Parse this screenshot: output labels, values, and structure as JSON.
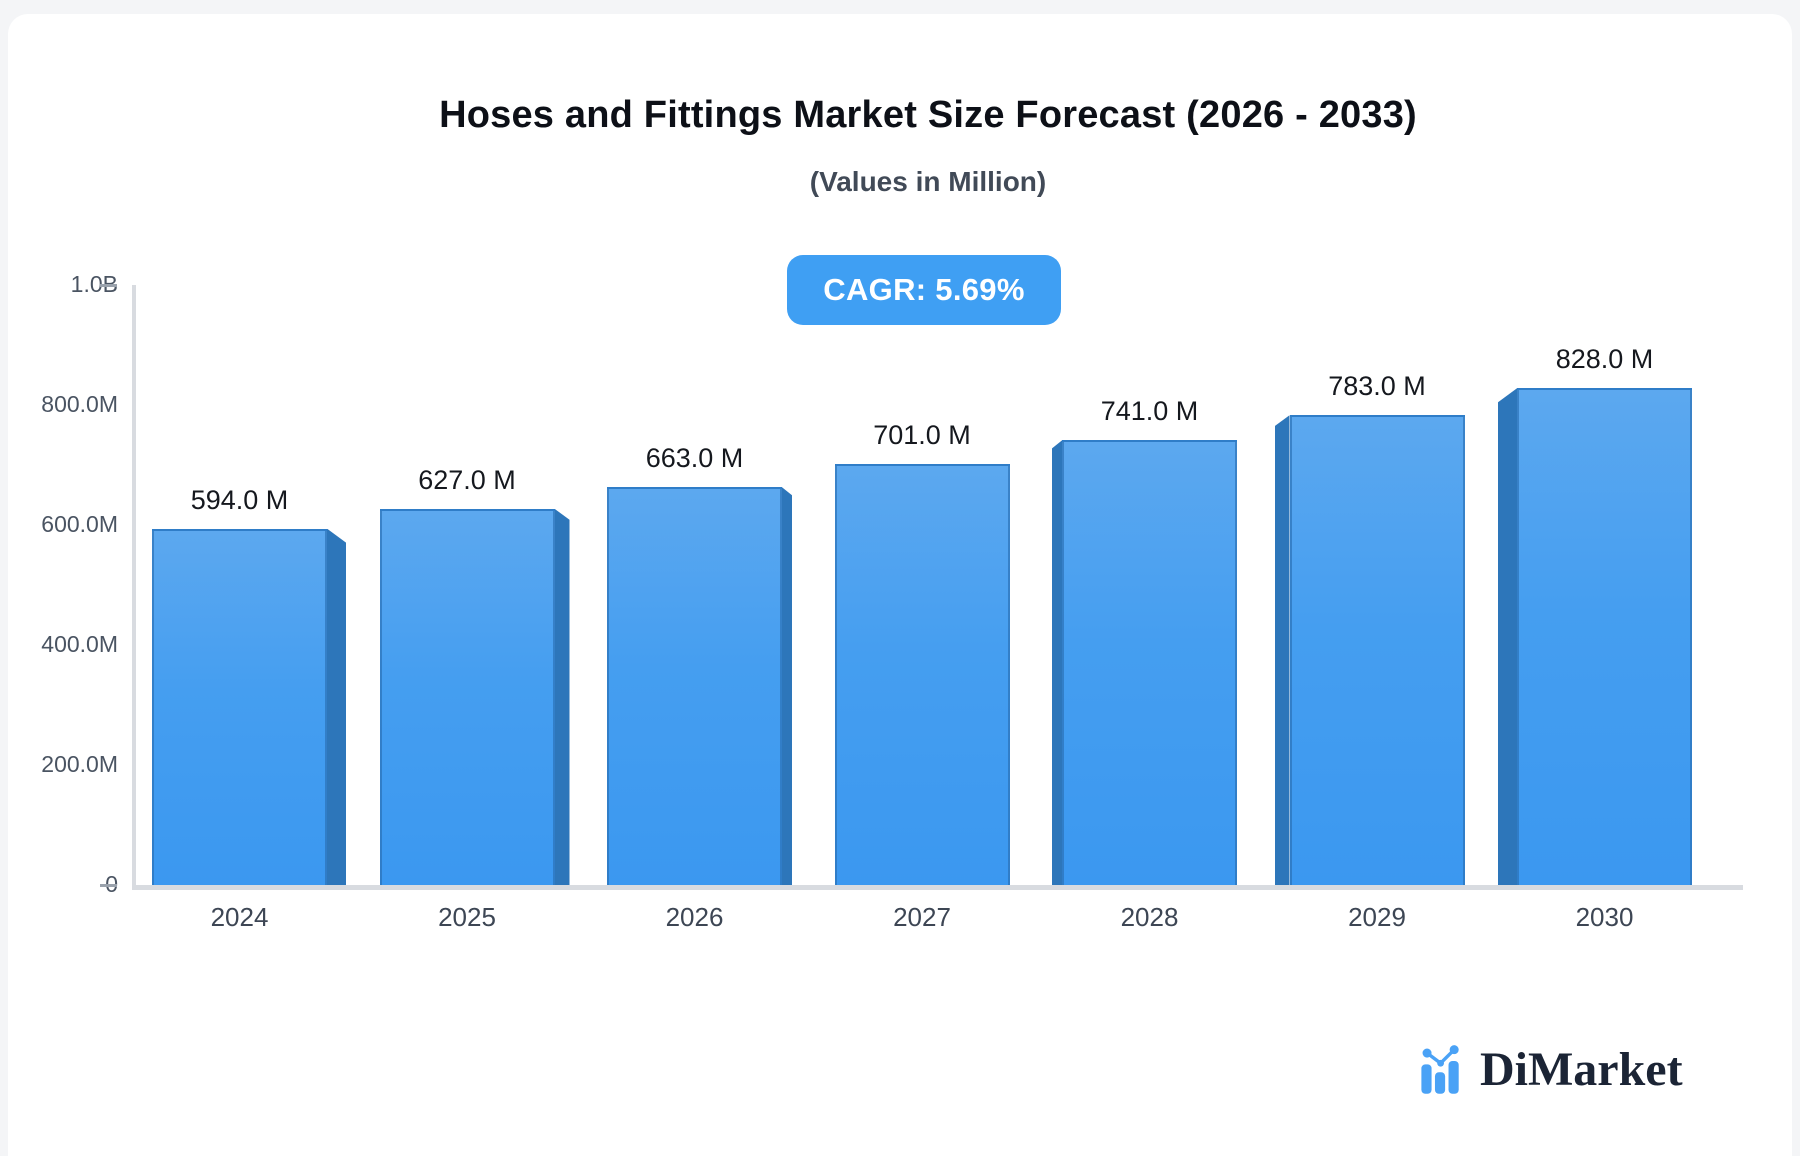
{
  "chart_data": {
    "type": "bar",
    "title": "Hoses and Fittings Market Size Forecast (2026 - 2033)",
    "subtitle": "(Values in Million)",
    "cagr_label": "CAGR: 5.69%",
    "categories": [
      "2024",
      "2025",
      "2026",
      "2027",
      "2028",
      "2029",
      "2030"
    ],
    "values": [
      594,
      627,
      663,
      701,
      741,
      783,
      828
    ],
    "value_labels": [
      "594.0 M",
      "627.0 M",
      "663.0 M",
      "701.0 M",
      "741.0 M",
      "783.0 M",
      "828.0 M"
    ],
    "ylim": [
      0,
      1000
    ],
    "y_ticks": [
      {
        "label": "1.0B",
        "value": 1000,
        "dash": true
      },
      {
        "label": "800.0M",
        "value": 800,
        "dash": false
      },
      {
        "label": "600.0M",
        "value": 600,
        "dash": false
      },
      {
        "label": "400.0M",
        "value": 400,
        "dash": false
      },
      {
        "label": "200.0M",
        "value": 200,
        "dash": false
      },
      {
        "label": "0",
        "value": 0,
        "dash": true
      }
    ],
    "grid": false,
    "legend": false,
    "bar_color": "#3f9bf0",
    "bar_side_color": "#2d76ba",
    "badge_color": "#3f9ff3",
    "axis_color": "#d8dbe0"
  },
  "footer": {
    "logo_text": "DiMarket",
    "logo_icon": "mini-bar-chart-icon",
    "logo_icon_color": "#4aa2f6",
    "logo_text_color": "#1b2435"
  }
}
